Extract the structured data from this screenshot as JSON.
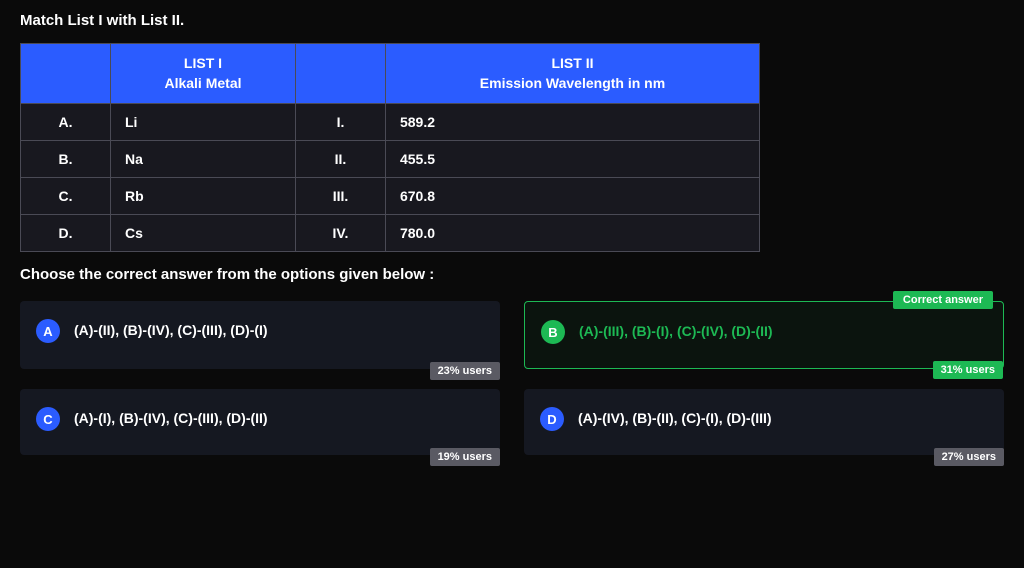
{
  "colors": {
    "page_bg": "#0a0a0a",
    "text": "#ffffff",
    "header_bg": "#2b5cff",
    "cell_bg": "#18181f",
    "border": "#4a4a55",
    "option_bg": "#151821",
    "correct": "#1db954",
    "badge_bg": "#5a5a63"
  },
  "question": {
    "title": "Match List I with List II.",
    "sub_instruction": "Choose the correct answer from the options given below :"
  },
  "table": {
    "list1_header_line1": "LIST I",
    "list1_header_line2": "Alkali Metal",
    "list2_header_line1": "LIST II",
    "list2_header_line2": "Emission Wavelength in nm",
    "rows": [
      {
        "k1": "A.",
        "v1": "Li",
        "k2": "I.",
        "v2": "589.2"
      },
      {
        "k1": "B.",
        "v1": "Na",
        "k2": "II.",
        "v2": "455.5"
      },
      {
        "k1": "C.",
        "v1": "Rb",
        "k2": "III.",
        "v2": "670.8"
      },
      {
        "k1": "D.",
        "v1": "Cs",
        "k2": "IV.",
        "v2": "780.0"
      }
    ]
  },
  "options": [
    {
      "letter": "A",
      "text": "(A)-(II), (B)-(IV), (C)-(III), (D)-(I)",
      "users": "23% users",
      "correct": false
    },
    {
      "letter": "B",
      "text": "(A)-(III), (B)-(I), (C)-(IV), (D)-(II)",
      "users": "31% users",
      "correct": true
    },
    {
      "letter": "C",
      "text": "(A)-(I), (B)-(IV), (C)-(III), (D)-(II)",
      "users": "19% users",
      "correct": false
    },
    {
      "letter": "D",
      "text": "(A)-(IV), (B)-(II), (C)-(I), (D)-(III)",
      "users": "27% users",
      "correct": false
    }
  ],
  "labels": {
    "correct_answer": "Correct answer"
  }
}
